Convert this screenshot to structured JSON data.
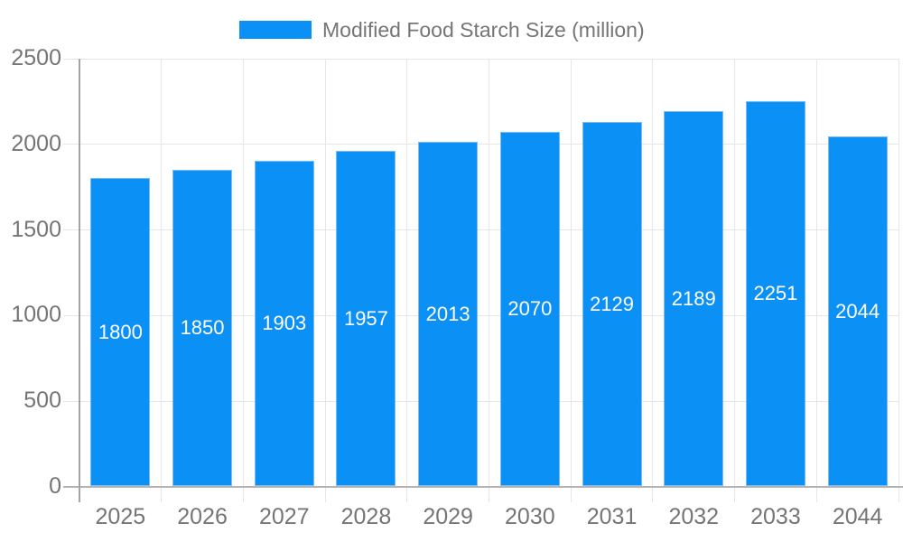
{
  "legend": {
    "label": "Modified Food Starch Size (million)"
  },
  "chart_data": {
    "type": "bar",
    "title": "Modified Food Starch Size (million)",
    "categories": [
      "2025",
      "2026",
      "2027",
      "2028",
      "2029",
      "2030",
      "2031",
      "2032",
      "2033",
      "2044"
    ],
    "values": [
      1800,
      1850,
      1903,
      1957,
      2013,
      2070,
      2129,
      2189,
      2251,
      2044
    ],
    "xlabel": "",
    "ylabel": "",
    "ylim": [
      0,
      2500
    ],
    "yticks": [
      0,
      500,
      1000,
      1500,
      2000,
      2500
    ],
    "grid": true,
    "legend_position": "top",
    "value_labels_inside_bars": true,
    "colors": {
      "bar": "#0b90f5",
      "bar_border": "#7bbdf3",
      "bar_label_text": "#ffffff",
      "axis_text": "#757575",
      "gridline": "#e6e6e6",
      "baseline": "#b3b3b3",
      "axis_line": "#a3a3a3"
    }
  }
}
